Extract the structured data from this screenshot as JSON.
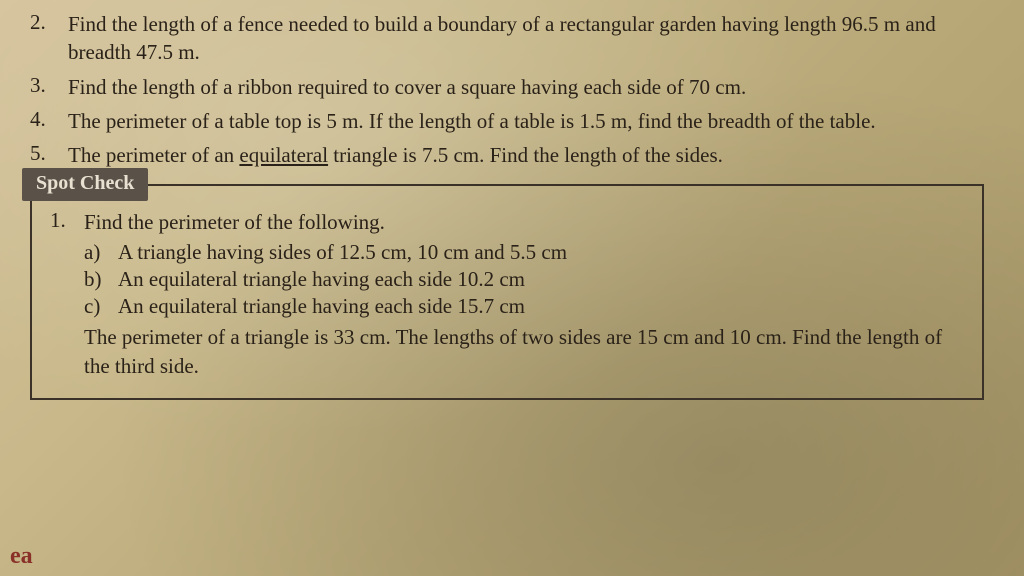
{
  "questions": [
    {
      "num": "2.",
      "text_a": "Find the length of a fence needed to build a boundary of a rectangular garden having length 96.5 m and breadth 47.5 m."
    },
    {
      "num": "3.",
      "text_a": "Find the length of a ribbon required to cover a square having each side of 70 cm."
    },
    {
      "num": "4.",
      "text_a": "The perimeter of a table top is 5 m. If the length of a table is 1.5 m, find the breadth of the table."
    },
    {
      "num": "5.",
      "text_pre": "The perimeter of an ",
      "text_u": "equilateral",
      "text_post": " triangle is 7.5 cm. Find the length of the sides."
    }
  ],
  "spot": {
    "label": "Spot Check",
    "q1": {
      "num": "1.",
      "lead": "Find the perimeter of the following.",
      "items": [
        {
          "k": "a)",
          "v": "A triangle having sides of 12.5 cm, 10 cm and 5.5 cm"
        },
        {
          "k": "b)",
          "v": "An equilateral triangle having each side 10.2 cm"
        },
        {
          "k": "c)",
          "v": "An equilateral triangle having each side 15.7 cm"
        }
      ]
    },
    "q2": "The perimeter of a triangle is 33 cm. The lengths of two sides are 15 cm and 10 cm. Find the length of the third side."
  },
  "corner": "ea",
  "style": {
    "text_color": "#2a2218",
    "bg_gradient": [
      "#d4c29a",
      "#a89868"
    ],
    "spot_label_bg": "#5a5248",
    "spot_label_fg": "#e8e0d0",
    "border_color": "#3a3228",
    "corner_color": "#8a3028",
    "body_fontsize_pt": 16,
    "font_family": "Georgia serif"
  }
}
